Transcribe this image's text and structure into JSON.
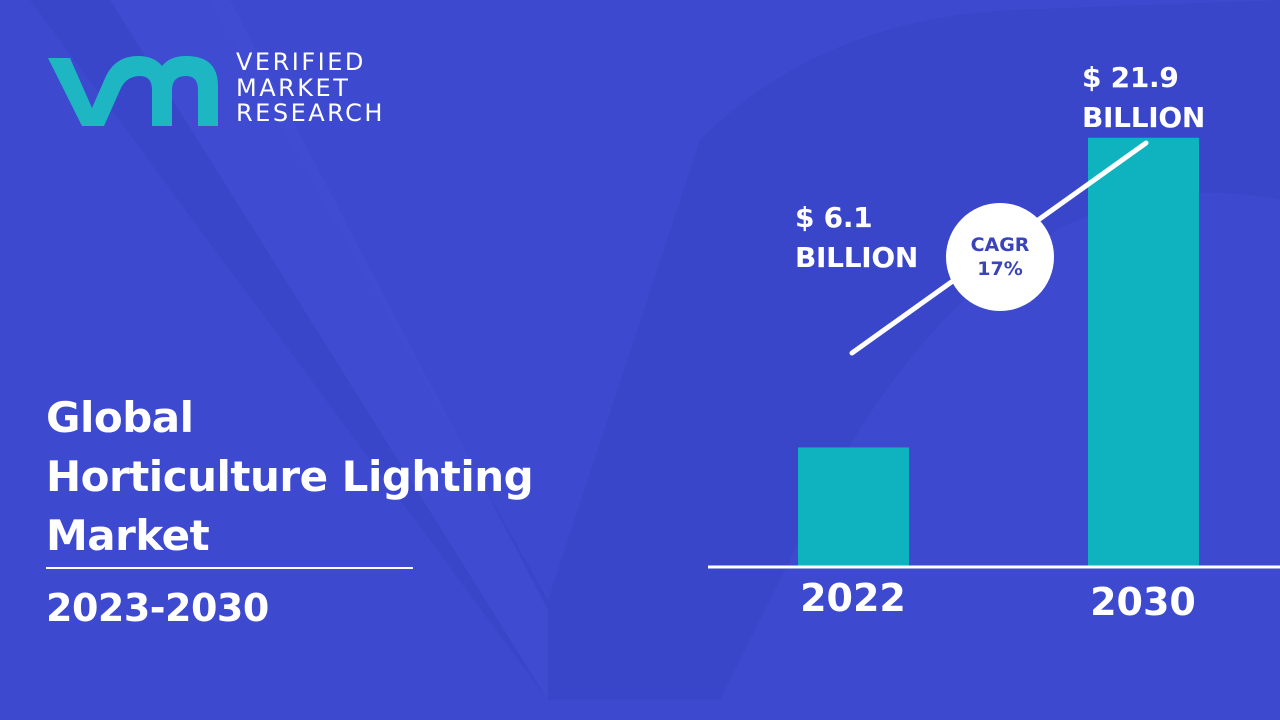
{
  "brand": {
    "name_lines": [
      "VERIFIED",
      "MARKET",
      "RESEARCH"
    ],
    "mark_color": "#1fb6c4"
  },
  "title_lines": [
    "Global",
    "Horticulture Lighting",
    "Market"
  ],
  "period": "2023-2030",
  "colors": {
    "background": "#3d4ad0",
    "bar": "#0fb3c0",
    "axis": "#ffffff",
    "cagr_text": "#3a44b8"
  },
  "chart_data": {
    "type": "bar",
    "categories": [
      "2022",
      "2030"
    ],
    "values": [
      6.1,
      21.9
    ],
    "value_labels": [
      [
        "$ 6.1",
        "BILLION"
      ],
      [
        "$ 21.9",
        "BILLION"
      ]
    ],
    "unit": "BILLION",
    "cagr": {
      "label": "CAGR",
      "value": "17%"
    },
    "ylim": [
      0,
      25
    ],
    "grid": false,
    "legend": "none"
  }
}
